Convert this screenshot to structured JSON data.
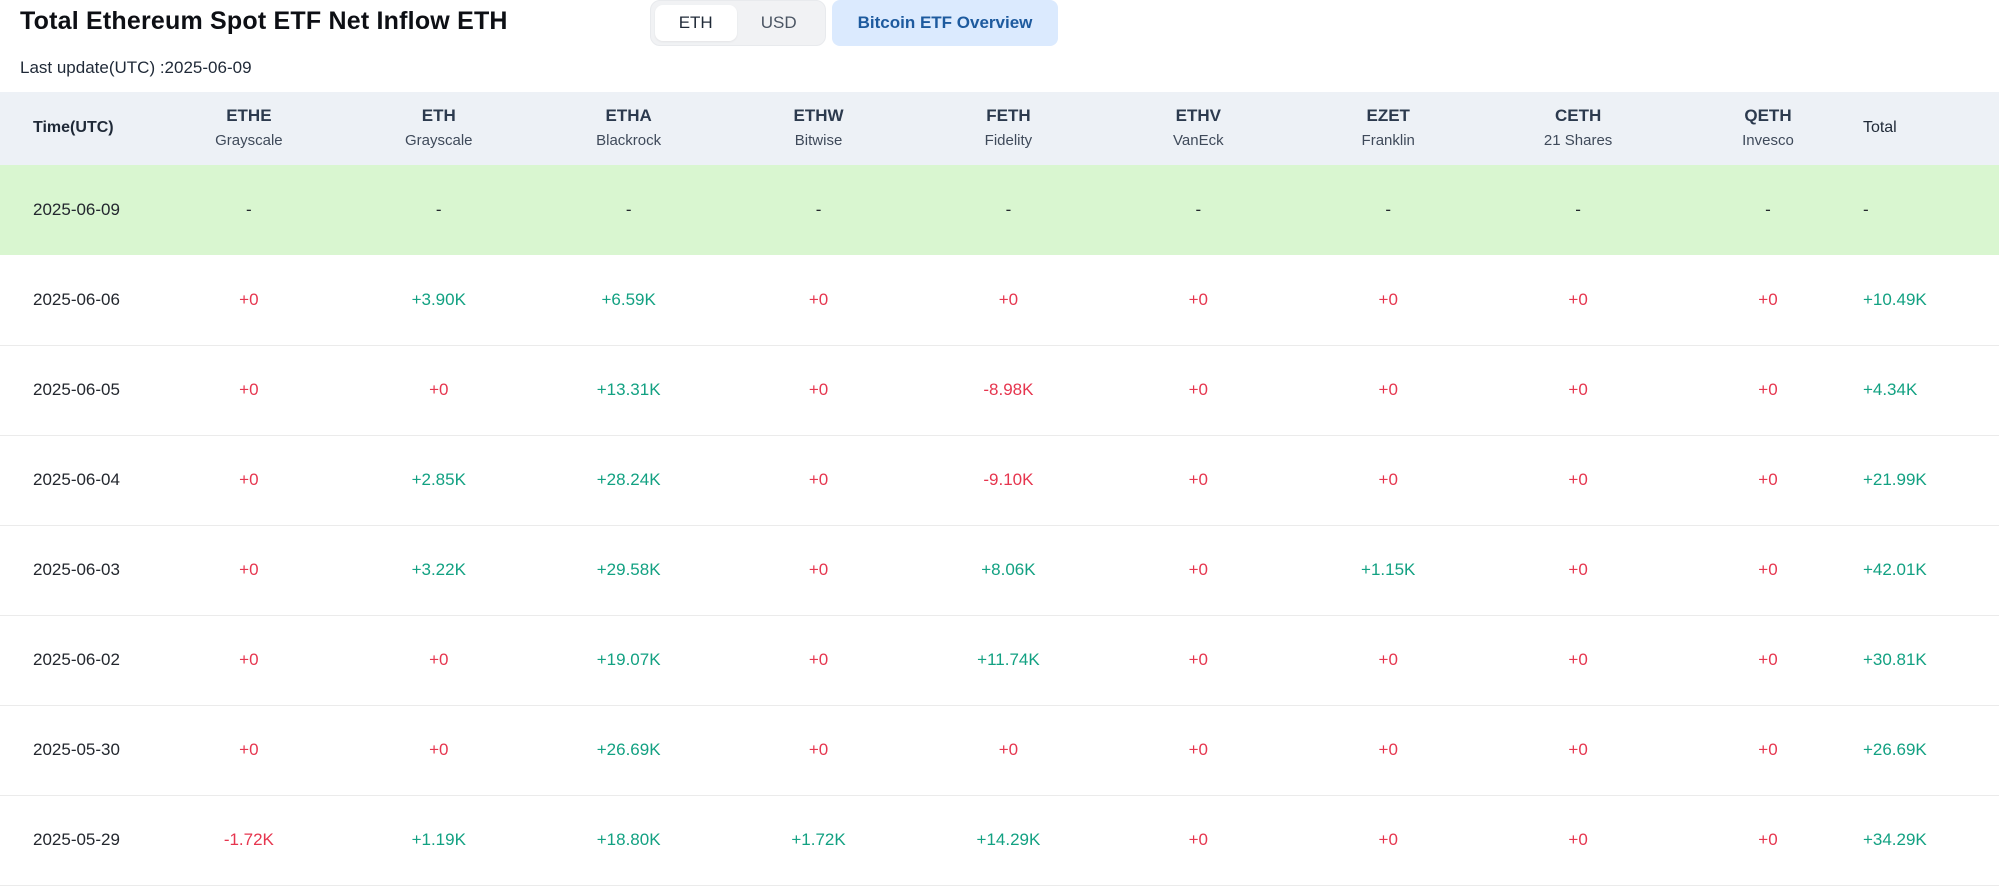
{
  "header": {
    "title": "Total Ethereum Spot ETF Net Inflow ETH",
    "last_update": "Last update(UTC) :2025-06-09",
    "toggle": {
      "options": [
        "ETH",
        "USD"
      ],
      "selected": "ETH"
    },
    "overview_button": "Bitcoin ETF Overview"
  },
  "table": {
    "time_header": "Time(UTC)",
    "total_header": "Total",
    "columns": [
      {
        "ticker": "ETHE",
        "issuer": "Grayscale"
      },
      {
        "ticker": "ETH",
        "issuer": "Grayscale"
      },
      {
        "ticker": "ETHA",
        "issuer": "Blackrock"
      },
      {
        "ticker": "ETHW",
        "issuer": "Bitwise"
      },
      {
        "ticker": "FETH",
        "issuer": "Fidelity"
      },
      {
        "ticker": "ETHV",
        "issuer": "VanEck"
      },
      {
        "ticker": "EZET",
        "issuer": "Franklin"
      },
      {
        "ticker": "CETH",
        "issuer": "21 Shares"
      },
      {
        "ticker": "QETH",
        "issuer": "Invesco"
      }
    ],
    "rows": [
      {
        "date": "2025-06-09",
        "highlight": true,
        "values": [
          "-",
          "-",
          "-",
          "-",
          "-",
          "-",
          "-",
          "-",
          "-"
        ],
        "total": "-"
      },
      {
        "date": "2025-06-06",
        "highlight": false,
        "values": [
          "+0",
          "+3.90K",
          "+6.59K",
          "+0",
          "+0",
          "+0",
          "+0",
          "+0",
          "+0"
        ],
        "total": "+10.49K"
      },
      {
        "date": "2025-06-05",
        "highlight": false,
        "values": [
          "+0",
          "+0",
          "+13.31K",
          "+0",
          "-8.98K",
          "+0",
          "+0",
          "+0",
          "+0"
        ],
        "total": "+4.34K"
      },
      {
        "date": "2025-06-04",
        "highlight": false,
        "values": [
          "+0",
          "+2.85K",
          "+28.24K",
          "+0",
          "-9.10K",
          "+0",
          "+0",
          "+0",
          "+0"
        ],
        "total": "+21.99K"
      },
      {
        "date": "2025-06-03",
        "highlight": false,
        "values": [
          "+0",
          "+3.22K",
          "+29.58K",
          "+0",
          "+8.06K",
          "+0",
          "+1.15K",
          "+0",
          "+0"
        ],
        "total": "+42.01K"
      },
      {
        "date": "2025-06-02",
        "highlight": false,
        "values": [
          "+0",
          "+0",
          "+19.07K",
          "+0",
          "+11.74K",
          "+0",
          "+0",
          "+0",
          "+0"
        ],
        "total": "+30.81K"
      },
      {
        "date": "2025-05-30",
        "highlight": false,
        "values": [
          "+0",
          "+0",
          "+26.69K",
          "+0",
          "+0",
          "+0",
          "+0",
          "+0",
          "+0"
        ],
        "total": "+26.69K"
      },
      {
        "date": "2025-05-29",
        "highlight": false,
        "values": [
          "-1.72K",
          "+1.19K",
          "+18.80K",
          "+1.72K",
          "+14.29K",
          "+0",
          "+0",
          "+0",
          "+0"
        ],
        "total": "+34.29K"
      }
    ]
  },
  "colors": {
    "positive": "#12a182",
    "negative": "#e6354e",
    "highlight_row": "#d9f6d0",
    "overview_button_bg": "#dbeafe",
    "overview_button_fg": "#1d5a9e"
  }
}
